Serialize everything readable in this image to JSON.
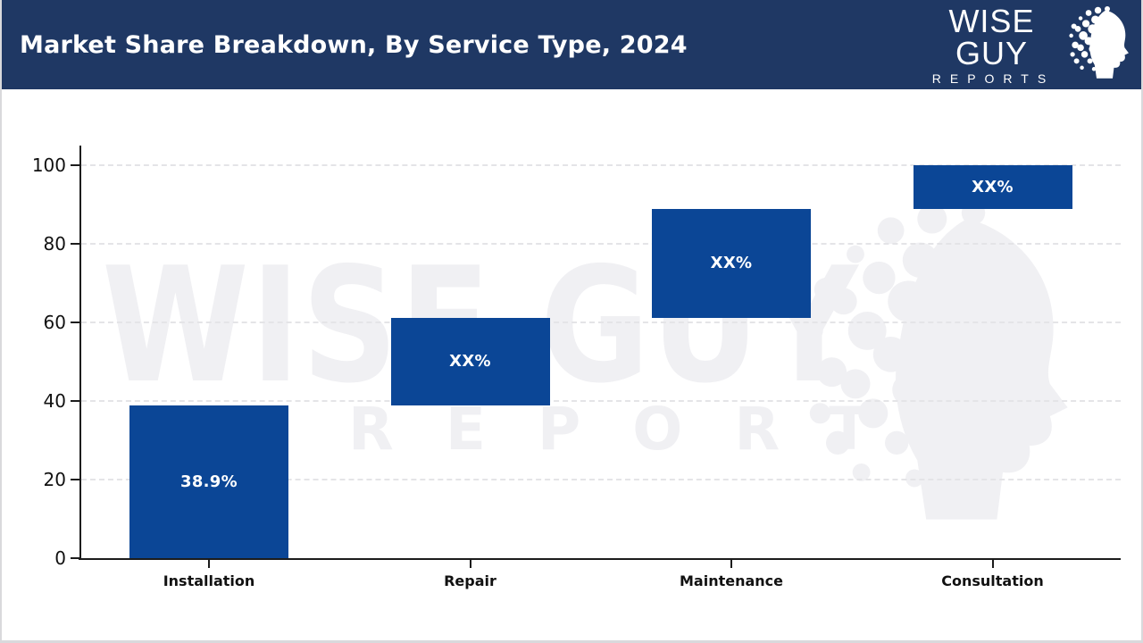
{
  "header": {
    "title": "Market Share Breakdown, By Service Type, 2024",
    "logo": {
      "line1": "WISE GUY",
      "line2": "REPORTS"
    }
  },
  "watermark": {
    "line1": "WISE GUY",
    "line2": "REPORTS"
  },
  "chart_data": {
    "type": "waterfall",
    "title": "Market Share Breakdown, By Service Type, 2024",
    "categories": [
      "Installation",
      "Repair",
      "Maintenance",
      "Consultation"
    ],
    "segments": [
      {
        "category": "Installation",
        "start": 0,
        "end": 38.9,
        "label": "38.9%"
      },
      {
        "category": "Repair",
        "start": 38.9,
        "end": 61.1,
        "label": "XX%"
      },
      {
        "category": "Maintenance",
        "start": 61.1,
        "end": 88.9,
        "label": "XX%"
      },
      {
        "category": "Consultation",
        "start": 88.9,
        "end": 100,
        "label": "XX%"
      }
    ],
    "y_ticks": [
      0,
      20,
      40,
      60,
      80,
      100
    ],
    "ylim": [
      0,
      105
    ],
    "xlabel": "",
    "ylabel": "",
    "grid": "horizontal-dashed",
    "legend": "none",
    "bar_color": "#0B4696",
    "bar_label_color": "#FFFFFF",
    "header_bg": "#1F3864",
    "gridline_color": "#E4E4E7"
  }
}
